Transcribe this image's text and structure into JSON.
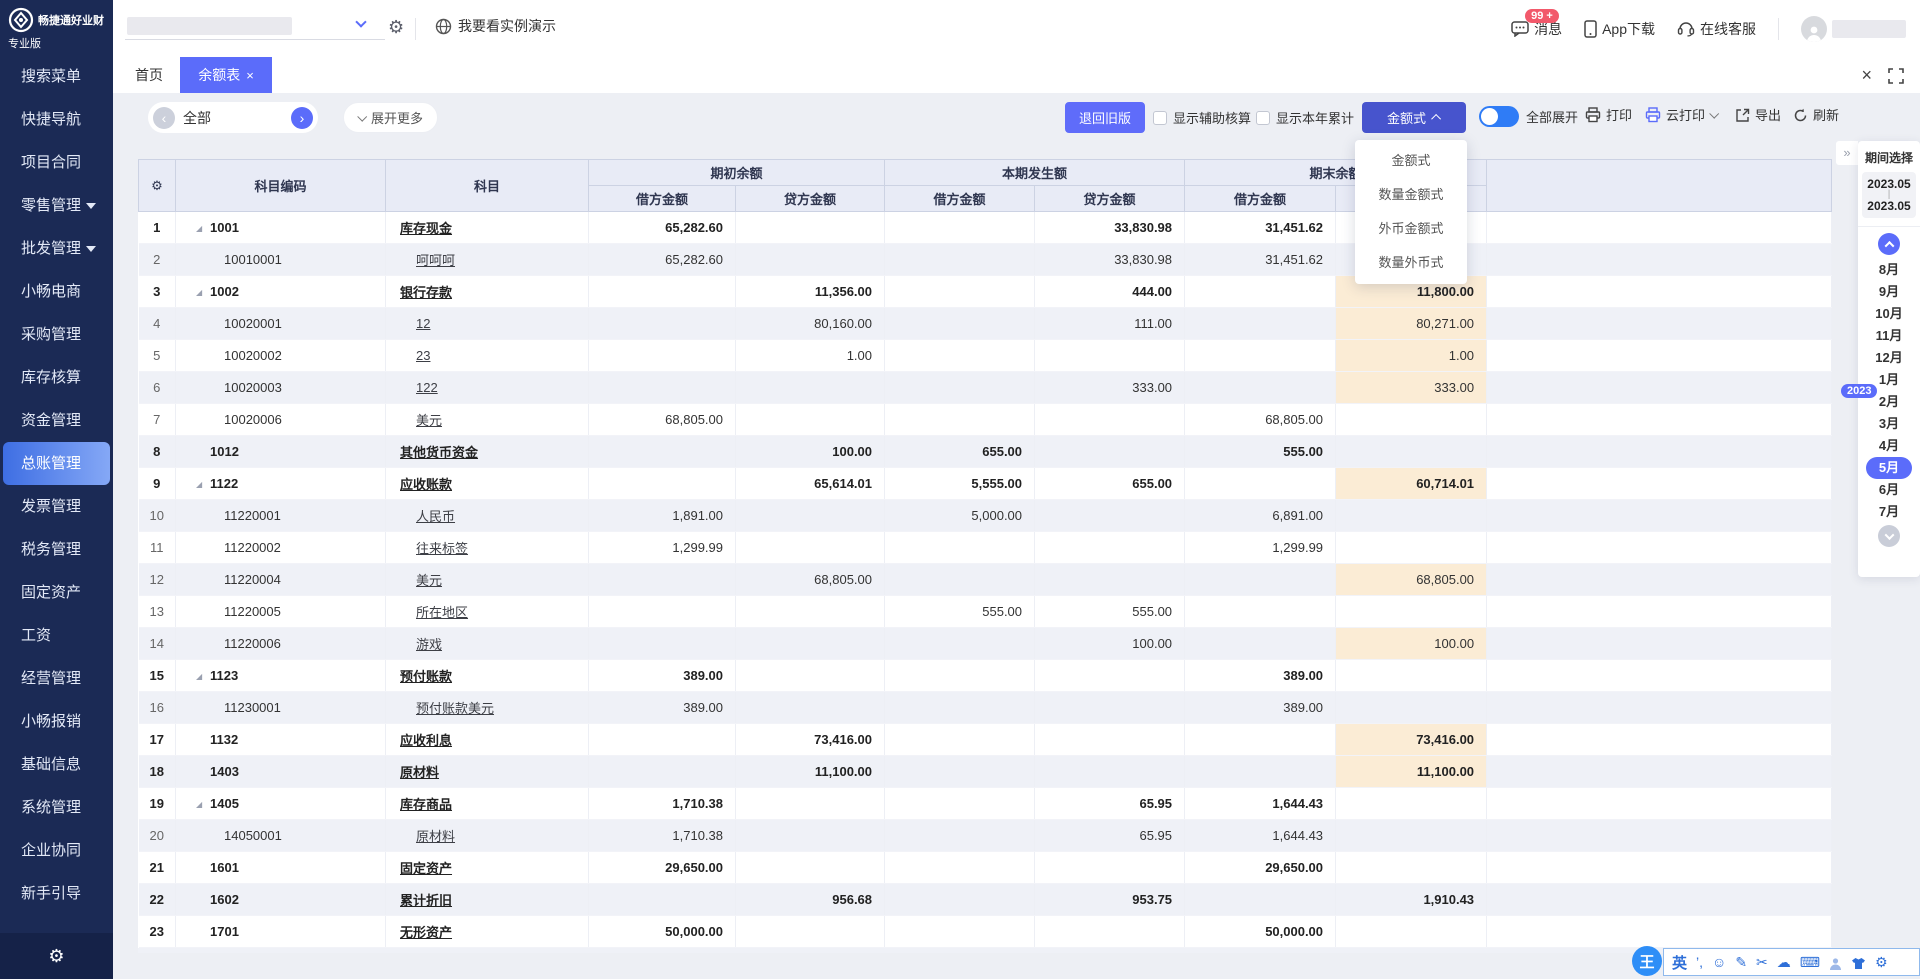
{
  "brand": {
    "name": "畅捷通好业财",
    "edition": "专业版"
  },
  "sidebar": {
    "items": [
      {
        "label": "搜索菜单"
      },
      {
        "label": "快捷导航"
      },
      {
        "label": "项目合同"
      },
      {
        "label": "零售管理",
        "arrow": true
      },
      {
        "label": "批发管理",
        "arrow": true
      },
      {
        "label": "小畅电商"
      },
      {
        "label": "采购管理"
      },
      {
        "label": "库存核算"
      },
      {
        "label": "资金管理"
      },
      {
        "label": "总账管理",
        "active": true
      },
      {
        "label": "发票管理"
      },
      {
        "label": "税务管理"
      },
      {
        "label": "固定资产"
      },
      {
        "label": "工资"
      },
      {
        "label": "经营管理"
      },
      {
        "label": "小畅报销"
      },
      {
        "label": "基础信息"
      },
      {
        "label": "系统管理"
      },
      {
        "label": "企业协同"
      },
      {
        "label": "新手引导"
      }
    ]
  },
  "topbar": {
    "demo_link": "我要看实例演示",
    "messages": "消息",
    "messages_badge": "99 +",
    "app_download": "App下载",
    "support": "在线客服"
  },
  "tabs": {
    "home": "首页",
    "current": "余额表",
    "close": "×"
  },
  "filter": {
    "scope": "全部",
    "expand_more": "展开更多"
  },
  "toolbar": {
    "back_old": "退回旧版",
    "chk_aux": "显示辅助核算",
    "chk_ytd": "显示本年累计",
    "mode": "金额式",
    "expand_all": "全部展开",
    "print": "打印",
    "cloud_print": "云打印",
    "export": "导出",
    "refresh": "刷新"
  },
  "mode_menu": {
    "items": [
      "金额式",
      "数量金额式",
      "外币金额式",
      "数量外币式"
    ]
  },
  "table": {
    "col_num_icon": "gear",
    "col_code": "科目编码",
    "col_subject": "科目",
    "group_opening": "期初余额",
    "group_current": "本期发生额",
    "group_ending": "期末余额",
    "col_debit": "借方金额",
    "col_credit": "贷方金额",
    "rows": [
      {
        "n": 1,
        "code": "1001",
        "name": "库存现金",
        "exp": true,
        "b": true,
        "od": "65,282.60",
        "oc": "",
        "cd": "",
        "cc": "33,830.98",
        "ed": "31,451.62",
        "ec": "",
        "hl": false
      },
      {
        "n": 2,
        "code": "10010001",
        "name": "呵呵呵",
        "child": true,
        "od": "65,282.60",
        "oc": "",
        "cd": "",
        "cc": "33,830.98",
        "ed": "31,451.62",
        "ec": "",
        "hl": false
      },
      {
        "n": 3,
        "code": "1002",
        "name": "银行存款",
        "exp": true,
        "b": true,
        "od": "",
        "oc": "11,356.00",
        "cd": "",
        "cc": "444.00",
        "ed": "",
        "ec": "11,800.00",
        "hl": true
      },
      {
        "n": 4,
        "code": "10020001",
        "name": "12",
        "child": true,
        "od": "",
        "oc": "80,160.00",
        "cd": "",
        "cc": "111.00",
        "ed": "",
        "ec": "80,271.00",
        "hl": true
      },
      {
        "n": 5,
        "code": "10020002",
        "name": "23",
        "child": true,
        "od": "",
        "oc": "1.00",
        "cd": "",
        "cc": "",
        "ed": "",
        "ec": "1.00",
        "hl": true
      },
      {
        "n": 6,
        "code": "10020003",
        "name": "122",
        "child": true,
        "od": "",
        "oc": "",
        "cd": "",
        "cc": "333.00",
        "ed": "",
        "ec": "333.00",
        "hl": true
      },
      {
        "n": 7,
        "code": "10020006",
        "name": "美元",
        "child": true,
        "od": "68,805.00",
        "oc": "",
        "cd": "",
        "cc": "",
        "ed": "68,805.00",
        "ec": "",
        "hl": false
      },
      {
        "n": 8,
        "code": "1012",
        "name": "其他货币资金",
        "b": true,
        "od": "",
        "oc": "100.00",
        "cd": "655.00",
        "cc": "",
        "ed": "555.00",
        "ec": "",
        "hl": false
      },
      {
        "n": 9,
        "code": "1122",
        "name": "应收账款",
        "exp": true,
        "b": true,
        "od": "",
        "oc": "65,614.01",
        "cd": "5,555.00",
        "cc": "655.00",
        "ed": "",
        "ec": "60,714.01",
        "hl": true
      },
      {
        "n": 10,
        "code": "11220001",
        "name": "人民币",
        "child": true,
        "od": "1,891.00",
        "oc": "",
        "cd": "5,000.00",
        "cc": "",
        "ed": "6,891.00",
        "ec": "",
        "hl": false
      },
      {
        "n": 11,
        "code": "11220002",
        "name": "往来标签",
        "child": true,
        "od": "1,299.99",
        "oc": "",
        "cd": "",
        "cc": "",
        "ed": "1,299.99",
        "ec": "",
        "hl": false
      },
      {
        "n": 12,
        "code": "11220004",
        "name": "美元",
        "child": true,
        "od": "",
        "oc": "68,805.00",
        "cd": "",
        "cc": "",
        "ed": "",
        "ec": "68,805.00",
        "hl": true
      },
      {
        "n": 13,
        "code": "11220005",
        "name": "所在地区",
        "child": true,
        "od": "",
        "oc": "",
        "cd": "555.00",
        "cc": "555.00",
        "ed": "",
        "ec": "",
        "hl": false
      },
      {
        "n": 14,
        "code": "11220006",
        "name": "游戏",
        "child": true,
        "od": "",
        "oc": "",
        "cd": "",
        "cc": "100.00",
        "ed": "",
        "ec": "100.00",
        "hl": true
      },
      {
        "n": 15,
        "code": "1123",
        "name": "预付账款",
        "exp": true,
        "b": true,
        "od": "389.00",
        "oc": "",
        "cd": "",
        "cc": "",
        "ed": "389.00",
        "ec": "",
        "hl": false
      },
      {
        "n": 16,
        "code": "11230001",
        "name": "预付账款美元",
        "child": true,
        "od": "389.00",
        "oc": "",
        "cd": "",
        "cc": "",
        "ed": "389.00",
        "ec": "",
        "hl": false
      },
      {
        "n": 17,
        "code": "1132",
        "name": "应收利息",
        "b": true,
        "od": "",
        "oc": "73,416.00",
        "cd": "",
        "cc": "",
        "ed": "",
        "ec": "73,416.00",
        "hl": true
      },
      {
        "n": 18,
        "code": "1403",
        "name": "原材料",
        "b": true,
        "od": "",
        "oc": "11,100.00",
        "cd": "",
        "cc": "",
        "ed": "",
        "ec": "11,100.00",
        "hl": true
      },
      {
        "n": 19,
        "code": "1405",
        "name": "库存商品",
        "exp": true,
        "b": true,
        "od": "1,710.38",
        "oc": "",
        "cd": "",
        "cc": "65.95",
        "ed": "1,644.43",
        "ec": "",
        "hl": false
      },
      {
        "n": 20,
        "code": "14050001",
        "name": "原材料",
        "child": true,
        "od": "1,710.38",
        "oc": "",
        "cd": "",
        "cc": "65.95",
        "ed": "1,644.43",
        "ec": "",
        "hl": false
      },
      {
        "n": 21,
        "code": "1601",
        "name": "固定资产",
        "b": true,
        "od": "29,650.00",
        "oc": "",
        "cd": "",
        "cc": "",
        "ed": "29,650.00",
        "ec": "",
        "hl": false
      },
      {
        "n": 22,
        "code": "1602",
        "name": "累计折旧",
        "b": true,
        "od": "",
        "oc": "956.68",
        "cd": "",
        "cc": "953.75",
        "ed": "",
        "ec": "1,910.43",
        "hl": false
      },
      {
        "n": 23,
        "code": "1701",
        "name": "无形资产",
        "b": true,
        "od": "50,000.00",
        "oc": "",
        "cd": "",
        "cc": "",
        "ed": "50,000.00",
        "ec": "",
        "hl": false
      }
    ]
  },
  "period": {
    "title": "期间选择",
    "from": "2023.05",
    "to": "2023.05",
    "year_badge": "2023",
    "months": [
      "8月",
      "9月",
      "10月",
      "11月",
      "12月",
      "1月",
      "2月",
      "3月",
      "4月",
      "5月",
      "6月",
      "7月"
    ],
    "selected": "5月",
    "year_badge_before": "1月"
  },
  "ime": {
    "logo": "王",
    "lang": "英"
  },
  "colors": {
    "accent": "#5b6cfa",
    "sidebar_bg": "#1b2a55",
    "mode_btn": "#4754cd",
    "highlight_cell": "#fbecd5",
    "badge_red": "#f2596b",
    "toggle_on": "#2f7cf6"
  }
}
